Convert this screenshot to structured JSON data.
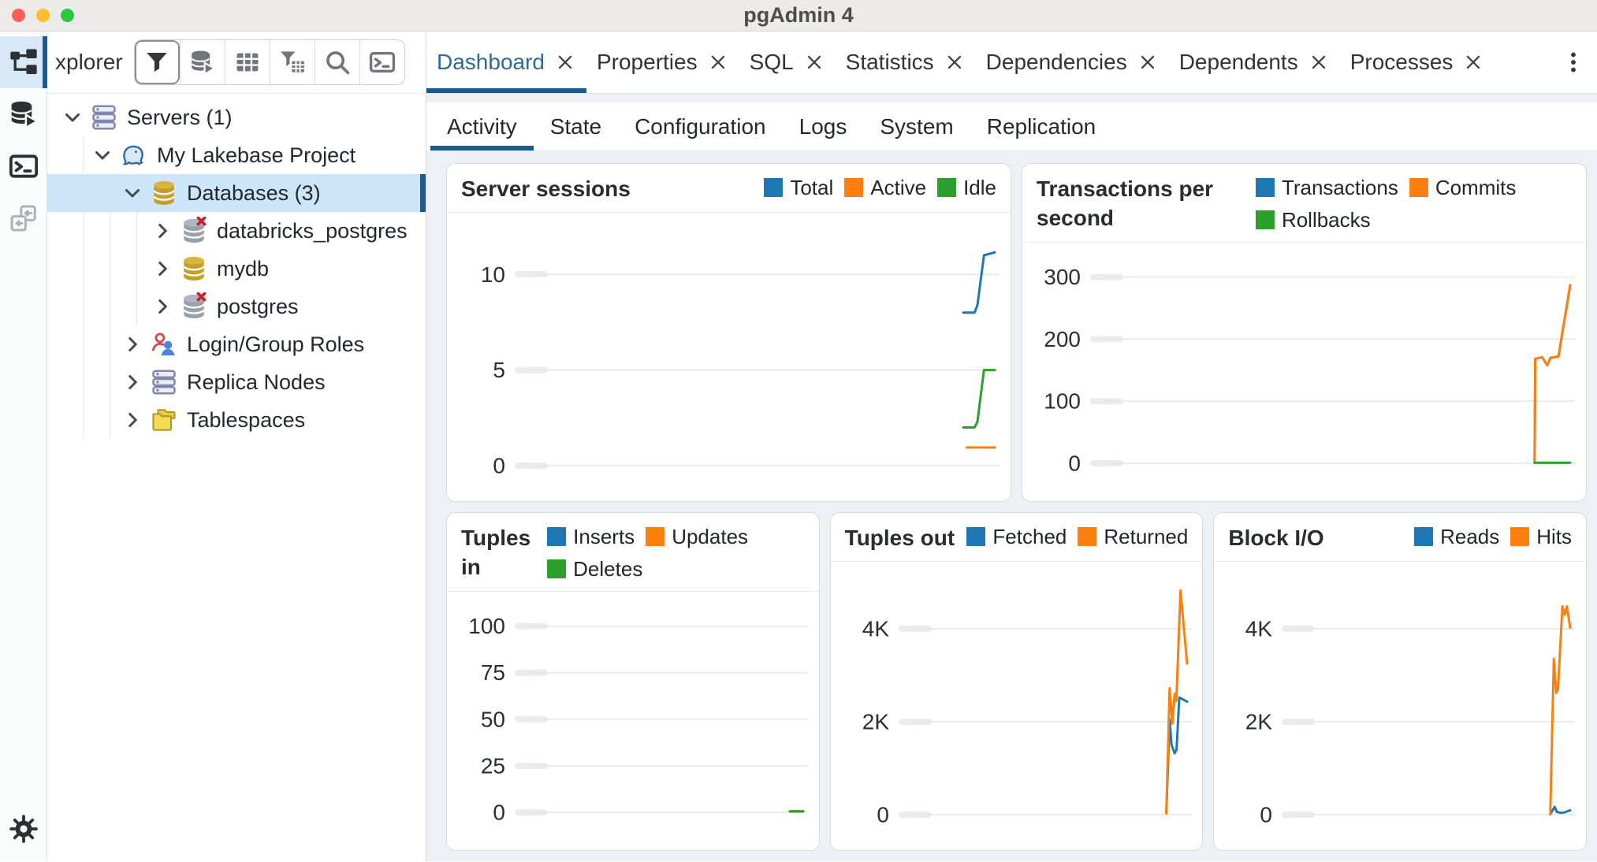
{
  "window": {
    "title": "pgAdmin 4"
  },
  "rail": {
    "items": [
      {
        "name": "object-explorer",
        "active": true
      },
      {
        "name": "query-tool",
        "active": false
      },
      {
        "name": "psql-tool",
        "active": false
      },
      {
        "name": "schema-diff",
        "active": false,
        "disabled": true
      }
    ],
    "bottom": {
      "name": "settings"
    }
  },
  "explorer": {
    "header_label": "xplorer",
    "toolbar": [
      {
        "icon": "filter-icon",
        "active": true
      },
      {
        "icon": "query-tool-icon",
        "active": false
      },
      {
        "icon": "view-data-icon",
        "active": false
      },
      {
        "icon": "filtered-rows-icon",
        "active": false
      },
      {
        "icon": "search-icon",
        "active": false
      },
      {
        "icon": "psql-tool-icon",
        "active": false
      }
    ],
    "tree": [
      {
        "label": "Servers (1)",
        "icon": "server-icon",
        "level": 0,
        "chevron": "down",
        "selected": false
      },
      {
        "label": "My Lakebase Project",
        "icon": "postgres-server-icon",
        "level": 1,
        "chevron": "down",
        "selected": false
      },
      {
        "label": "Databases (3)",
        "icon": "database-icon",
        "level": 2,
        "chevron": "down",
        "selected": true
      },
      {
        "label": "databricks_postgres",
        "icon": "database-disconnected-icon",
        "level": 3,
        "chevron": "right",
        "selected": false
      },
      {
        "label": "mydb",
        "icon": "database-icon",
        "level": 3,
        "chevron": "right",
        "selected": false
      },
      {
        "label": "postgres",
        "icon": "database-disconnected-icon",
        "level": 3,
        "chevron": "right",
        "selected": false
      },
      {
        "label": "Login/Group Roles",
        "icon": "login-group-roles-icon",
        "level": 2,
        "chevron": "right",
        "selected": false
      },
      {
        "label": "Replica Nodes",
        "icon": "server-icon",
        "level": 2,
        "chevron": "right",
        "selected": false
      },
      {
        "label": "Tablespaces",
        "icon": "tablespaces-icon",
        "level": 2,
        "chevron": "right",
        "selected": false
      }
    ]
  },
  "tabs": {
    "items": [
      {
        "label": "Dashboard",
        "active": true
      },
      {
        "label": "Properties",
        "active": false
      },
      {
        "label": "SQL",
        "active": false
      },
      {
        "label": "Statistics",
        "active": false
      },
      {
        "label": "Dependencies",
        "active": false
      },
      {
        "label": "Dependents",
        "active": false
      },
      {
        "label": "Processes",
        "active": false
      }
    ]
  },
  "subtabs": [
    {
      "label": "Activity",
      "active": true
    },
    {
      "label": "State",
      "active": false
    },
    {
      "label": "Configuration",
      "active": false
    },
    {
      "label": "Logs",
      "active": false
    },
    {
      "label": "System",
      "active": false
    },
    {
      "label": "Replication",
      "active": false
    }
  ],
  "colors": {
    "accent": "#1a5a8e",
    "active_tab_text": "#2b6a9c",
    "selection_bg": "#cde5f8",
    "series_blue": "#1f77b4",
    "series_orange": "#ff7f0e",
    "series_green": "#2ca02c"
  },
  "chart_data": [
    {
      "id": "server_sessions",
      "type": "line",
      "title": "Server sessions",
      "ylim": [
        0,
        12.4
      ],
      "grid": true,
      "x_axis_labels": false,
      "legend_position": "header-right",
      "yticks": [
        {
          "value": 10,
          "label": "10"
        },
        {
          "value": 5,
          "label": "5"
        },
        {
          "value": 0,
          "label": "0"
        }
      ],
      "series": [
        {
          "name": "Total",
          "color": "#1f77b4",
          "points": [
            [
              0.933,
              8
            ],
            [
              0.957,
              8
            ],
            [
              0.963,
              8.4
            ],
            [
              0.977,
              11
            ],
            [
              1,
              11.15
            ]
          ]
        },
        {
          "name": "Active",
          "color": "#ff7f0e",
          "points": [
            [
              0.94,
              0.95
            ],
            [
              1,
              0.95
            ]
          ]
        },
        {
          "name": "Idle",
          "color": "#2ca02c",
          "points": [
            [
              0.933,
              2
            ],
            [
              0.957,
              2
            ],
            [
              0.963,
              2.3
            ],
            [
              0.977,
              5
            ],
            [
              1,
              5
            ]
          ]
        }
      ]
    },
    {
      "id": "transactions_per_second",
      "type": "line",
      "title": "Transactions per second",
      "ylim": [
        0,
        330
      ],
      "grid": true,
      "x_axis_labels": false,
      "legend_position": "header-right",
      "yticks": [
        {
          "value": 300,
          "label": "300"
        },
        {
          "value": 200,
          "label": "200"
        },
        {
          "value": 100,
          "label": "100"
        },
        {
          "value": 0,
          "label": "0"
        }
      ],
      "series": [
        {
          "name": "Transactions",
          "color": "#1f77b4",
          "points": [
            [
              0.924,
              1
            ],
            [
              0.9255,
              168
            ],
            [
              0.94,
              171
            ],
            [
              0.951,
              158
            ],
            [
              0.958,
              170
            ],
            [
              0.975,
              172
            ],
            [
              1,
              287
            ]
          ]
        },
        {
          "name": "Commits",
          "color": "#ff7f0e",
          "points": [
            [
              0.924,
              1
            ],
            [
              0.9255,
              168
            ],
            [
              0.94,
              171
            ],
            [
              0.951,
              158
            ],
            [
              0.958,
              170
            ],
            [
              0.975,
              172
            ],
            [
              1,
              287
            ]
          ]
        },
        {
          "name": "Rollbacks",
          "color": "#2ca02c",
          "points": [
            [
              0.924,
              1
            ],
            [
              1,
              1
            ]
          ]
        }
      ]
    },
    {
      "id": "tuples_in",
      "type": "line",
      "title": "Tuples in",
      "ylim": [
        0,
        110
      ],
      "grid": true,
      "x_axis_labels": false,
      "legend_position": "header-right",
      "yticks": [
        {
          "value": 100,
          "label": "100"
        },
        {
          "value": 75,
          "label": "75"
        },
        {
          "value": 50,
          "label": "50"
        },
        {
          "value": 25,
          "label": "25"
        },
        {
          "value": 0,
          "label": "0"
        }
      ],
      "series": [
        {
          "name": "Inserts",
          "color": "#1f77b4",
          "points": [
            [
              0.952,
              0.5
            ],
            [
              1,
              0.5
            ]
          ]
        },
        {
          "name": "Updates",
          "color": "#ff7f0e",
          "points": [
            [
              0.952,
              0.5
            ],
            [
              1,
              0.5
            ]
          ]
        },
        {
          "name": "Deletes",
          "color": "#2ca02c",
          "points": [
            [
              0.952,
              0.5
            ],
            [
              1,
              0.5
            ]
          ]
        }
      ]
    },
    {
      "id": "tuples_out",
      "type": "line",
      "title": "Tuples out",
      "ylim": [
        0,
        5100
      ],
      "grid": true,
      "x_axis_labels": false,
      "legend_position": "header-right",
      "yticks": [
        {
          "value": 4000,
          "label": "4K"
        },
        {
          "value": 2000,
          "label": "2K"
        },
        {
          "value": 0,
          "label": "0"
        }
      ],
      "series": [
        {
          "name": "Fetched",
          "color": "#1f77b4",
          "points": [
            [
              0.925,
              30
            ],
            [
              0.937,
              2050
            ],
            [
              0.944,
              1500
            ],
            [
              0.955,
              1320
            ],
            [
              0.962,
              1400
            ],
            [
              0.972,
              2520
            ],
            [
              0.985,
              2480
            ],
            [
              1,
              2430
            ]
          ]
        },
        {
          "name": "Returned",
          "color": "#ff7f0e",
          "points": [
            [
              0.925,
              30
            ],
            [
              0.937,
              2720
            ],
            [
              0.947,
              1960
            ],
            [
              0.955,
              2600
            ],
            [
              0.961,
              2450
            ],
            [
              0.976,
              4820
            ],
            [
              1,
              3250
            ]
          ]
        }
      ]
    },
    {
      "id": "block_io",
      "type": "line",
      "title": "Block I/O",
      "ylim": [
        0,
        5100
      ],
      "grid": true,
      "x_axis_labels": false,
      "legend_position": "header-right",
      "yticks": [
        {
          "value": 4000,
          "label": "4K"
        },
        {
          "value": 2000,
          "label": "2K"
        },
        {
          "value": 0,
          "label": "0"
        }
      ],
      "series": [
        {
          "name": "Reads",
          "color": "#1f77b4",
          "points": [
            [
              0.928,
              10
            ],
            [
              0.944,
              170
            ],
            [
              0.952,
              60
            ],
            [
              0.965,
              40
            ],
            [
              0.98,
              50
            ],
            [
              1,
              95
            ]
          ]
        },
        {
          "name": "Hits",
          "color": "#ff7f0e",
          "points": [
            [
              0.928,
              10
            ],
            [
              0.941,
              3350
            ],
            [
              0.95,
              2620
            ],
            [
              0.956,
              2700
            ],
            [
              0.972,
              4480
            ],
            [
              0.98,
              4300
            ],
            [
              0.988,
              4480
            ],
            [
              1,
              4020
            ]
          ]
        }
      ]
    }
  ]
}
